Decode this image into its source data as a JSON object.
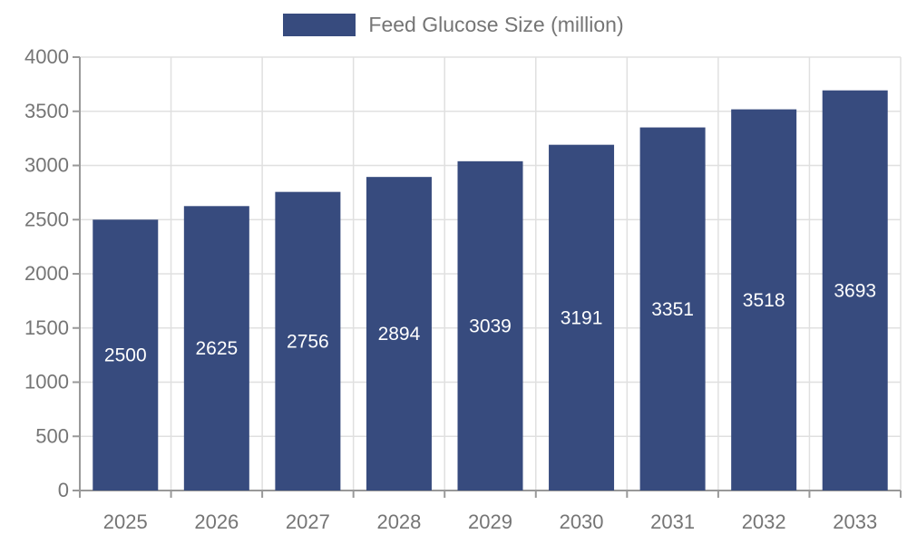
{
  "legend": {
    "label": "Feed Glucose Size (million)",
    "swatch_color": "#374B7E"
  },
  "chart_data": {
    "type": "bar",
    "title": "",
    "categories": [
      "2025",
      "2026",
      "2027",
      "2028",
      "2029",
      "2030",
      "2031",
      "2032",
      "2033"
    ],
    "series": [
      {
        "name": "Feed Glucose Size (million)",
        "values": [
          2500,
          2625,
          2756,
          2894,
          3039,
          3191,
          3351,
          3518,
          3693
        ]
      }
    ],
    "value_labels": [
      "2500",
      "2625",
      "2756",
      "2894",
      "3039",
      "3191",
      "3351",
      "3518",
      "3693"
    ],
    "value_label_position": "inside-center",
    "xlabel": "",
    "ylabel": "",
    "ylim": [
      0,
      4000
    ],
    "yticks": [
      "0",
      "500",
      "1000",
      "1500",
      "2000",
      "2500",
      "3000",
      "3500",
      "4000"
    ],
    "grid": true,
    "legend_position": "top-center",
    "colors": {
      "bar": "#374B7E",
      "value_label": "#FFFFFF",
      "axis_label": "#757575",
      "gridline": "#E0E0E0",
      "axis_line": "#999999",
      "background": "#FFFFFF"
    }
  }
}
